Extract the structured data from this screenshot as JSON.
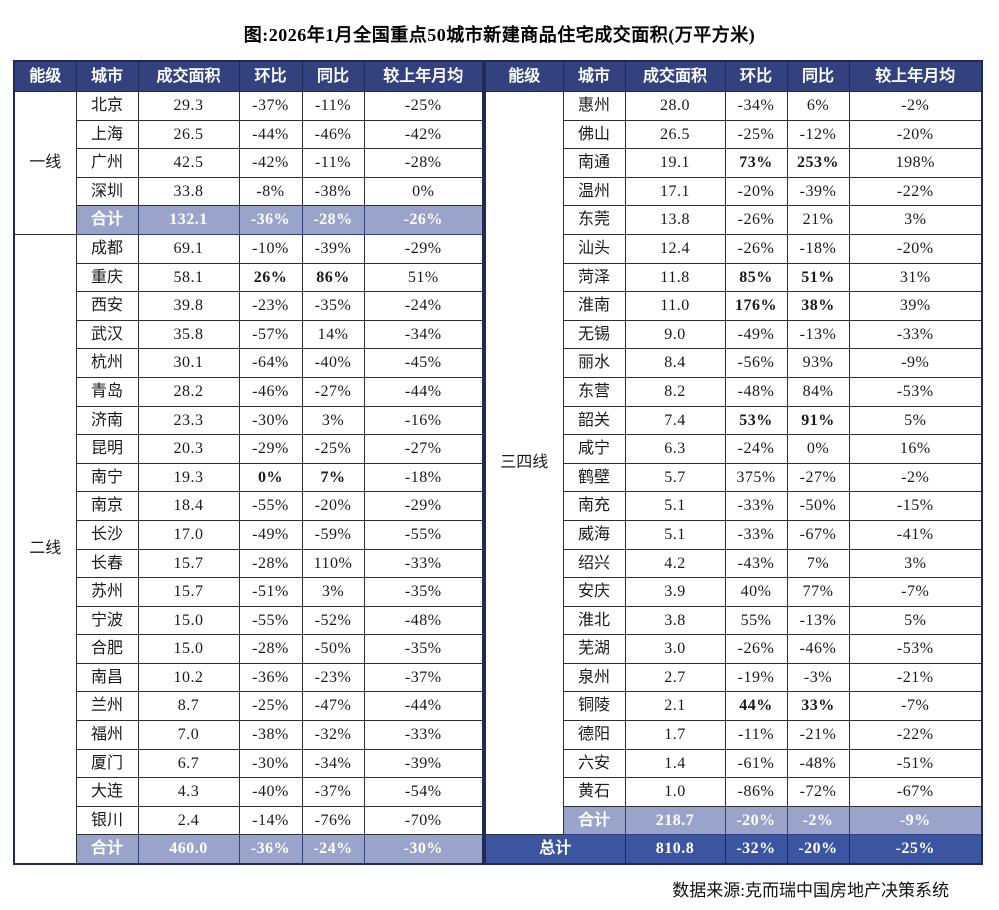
{
  "title": "图:2026年1月全国重点50城市新建商品住宅成交面积(万平方米)",
  "source": "数据来源:克而瑞中国房地产决策系统",
  "colors": {
    "header_bg": "#33417e",
    "subtotal_bg": "#9aa3c9",
    "grand_total_bg": "#3b55a0",
    "border_dark": "#1f2a55",
    "header_text": "#ffffff"
  },
  "chart_data": {
    "type": "table",
    "title": "图:2026年1月全国重点50城市新建商品住宅成交面积(万平方米)",
    "columns": [
      "能级",
      "城市",
      "成交面积",
      "环比",
      "同比",
      "较上年月均"
    ],
    "left_table": {
      "groups": [
        {
          "tier": "一线",
          "rows": [
            {
              "city": "北京",
              "area": "29.3",
              "mom": "-37%",
              "yoy": "-11%",
              "vs_avg": "-25%",
              "bold": false
            },
            {
              "city": "上海",
              "area": "26.5",
              "mom": "-44%",
              "yoy": "-46%",
              "vs_avg": "-42%",
              "bold": false
            },
            {
              "city": "广州",
              "area": "42.5",
              "mom": "-42%",
              "yoy": "-11%",
              "vs_avg": "-28%",
              "bold": false
            },
            {
              "city": "深圳",
              "area": "33.8",
              "mom": "-8%",
              "yoy": "-38%",
              "vs_avg": "0%",
              "bold": false
            }
          ],
          "subtotal": {
            "label": "合计",
            "area": "132.1",
            "mom": "-36%",
            "yoy": "-28%",
            "vs_avg": "-26%"
          }
        },
        {
          "tier": "二线",
          "rows": [
            {
              "city": "成都",
              "area": "69.1",
              "mom": "-10%",
              "yoy": "-39%",
              "vs_avg": "-29%",
              "bold": false
            },
            {
              "city": "重庆",
              "area": "58.1",
              "mom": "26%",
              "yoy": "86%",
              "vs_avg": "51%",
              "bold": true
            },
            {
              "city": "西安",
              "area": "39.8",
              "mom": "-23%",
              "yoy": "-35%",
              "vs_avg": "-24%",
              "bold": false
            },
            {
              "city": "武汉",
              "area": "35.8",
              "mom": "-57%",
              "yoy": "14%",
              "vs_avg": "-34%",
              "bold": false
            },
            {
              "city": "杭州",
              "area": "30.1",
              "mom": "-64%",
              "yoy": "-40%",
              "vs_avg": "-45%",
              "bold": false
            },
            {
              "city": "青岛",
              "area": "28.2",
              "mom": "-46%",
              "yoy": "-27%",
              "vs_avg": "-44%",
              "bold": false
            },
            {
              "city": "济南",
              "area": "23.3",
              "mom": "-30%",
              "yoy": "3%",
              "vs_avg": "-16%",
              "bold": false
            },
            {
              "city": "昆明",
              "area": "20.3",
              "mom": "-29%",
              "yoy": "-25%",
              "vs_avg": "-27%",
              "bold": false
            },
            {
              "city": "南宁",
              "area": "19.3",
              "mom": "0%",
              "yoy": "7%",
              "vs_avg": "-18%",
              "bold": true
            },
            {
              "city": "南京",
              "area": "18.4",
              "mom": "-55%",
              "yoy": "-20%",
              "vs_avg": "-29%",
              "bold": false
            },
            {
              "city": "长沙",
              "area": "17.0",
              "mom": "-49%",
              "yoy": "-59%",
              "vs_avg": "-55%",
              "bold": false
            },
            {
              "city": "长春",
              "area": "15.7",
              "mom": "-28%",
              "yoy": "110%",
              "vs_avg": "-33%",
              "bold": false
            },
            {
              "city": "苏州",
              "area": "15.7",
              "mom": "-51%",
              "yoy": "3%",
              "vs_avg": "-35%",
              "bold": false
            },
            {
              "city": "宁波",
              "area": "15.0",
              "mom": "-55%",
              "yoy": "-52%",
              "vs_avg": "-48%",
              "bold": false
            },
            {
              "city": "合肥",
              "area": "15.0",
              "mom": "-28%",
              "yoy": "-50%",
              "vs_avg": "-35%",
              "bold": false
            },
            {
              "city": "南昌",
              "area": "10.2",
              "mom": "-36%",
              "yoy": "-23%",
              "vs_avg": "-37%",
              "bold": false
            },
            {
              "city": "兰州",
              "area": "8.7",
              "mom": "-25%",
              "yoy": "-47%",
              "vs_avg": "-44%",
              "bold": false
            },
            {
              "city": "福州",
              "area": "7.0",
              "mom": "-38%",
              "yoy": "-32%",
              "vs_avg": "-33%",
              "bold": false
            },
            {
              "city": "厦门",
              "area": "6.7",
              "mom": "-30%",
              "yoy": "-34%",
              "vs_avg": "-39%",
              "bold": false
            },
            {
              "city": "大连",
              "area": "4.3",
              "mom": "-40%",
              "yoy": "-37%",
              "vs_avg": "-54%",
              "bold": false
            },
            {
              "city": "银川",
              "area": "2.4",
              "mom": "-14%",
              "yoy": "-76%",
              "vs_avg": "-70%",
              "bold": false
            }
          ],
          "subtotal": {
            "label": "合计",
            "area": "460.0",
            "mom": "-36%",
            "yoy": "-24%",
            "vs_avg": "-30%"
          }
        }
      ]
    },
    "right_table": {
      "groups": [
        {
          "tier": "三四线",
          "rows": [
            {
              "city": "惠州",
              "area": "28.0",
              "mom": "-34%",
              "yoy": "6%",
              "vs_avg": "-2%",
              "bold": false
            },
            {
              "city": "佛山",
              "area": "26.5",
              "mom": "-25%",
              "yoy": "-12%",
              "vs_avg": "-20%",
              "bold": false
            },
            {
              "city": "南通",
              "area": "19.1",
              "mom": "73%",
              "yoy": "253%",
              "vs_avg": "198%",
              "bold": true
            },
            {
              "city": "温州",
              "area": "17.1",
              "mom": "-20%",
              "yoy": "-39%",
              "vs_avg": "-22%",
              "bold": false
            },
            {
              "city": "东莞",
              "area": "13.8",
              "mom": "-26%",
              "yoy": "21%",
              "vs_avg": "3%",
              "bold": false
            },
            {
              "city": "汕头",
              "area": "12.4",
              "mom": "-26%",
              "yoy": "-18%",
              "vs_avg": "-20%",
              "bold": false
            },
            {
              "city": "菏泽",
              "area": "11.8",
              "mom": "85%",
              "yoy": "51%",
              "vs_avg": "31%",
              "bold": true
            },
            {
              "city": "淮南",
              "area": "11.0",
              "mom": "176%",
              "yoy": "38%",
              "vs_avg": "39%",
              "bold": true
            },
            {
              "city": "无锡",
              "area": "9.0",
              "mom": "-49%",
              "yoy": "-13%",
              "vs_avg": "-33%",
              "bold": false
            },
            {
              "city": "丽水",
              "area": "8.4",
              "mom": "-56%",
              "yoy": "93%",
              "vs_avg": "-9%",
              "bold": false
            },
            {
              "city": "东营",
              "area": "8.2",
              "mom": "-48%",
              "yoy": "84%",
              "vs_avg": "-53%",
              "bold": false
            },
            {
              "city": "韶关",
              "area": "7.4",
              "mom": "53%",
              "yoy": "91%",
              "vs_avg": "5%",
              "bold": true
            },
            {
              "city": "咸宁",
              "area": "6.3",
              "mom": "-24%",
              "yoy": "0%",
              "vs_avg": "16%",
              "bold": false
            },
            {
              "city": "鹤壁",
              "area": "5.7",
              "mom": "375%",
              "yoy": "-27%",
              "vs_avg": "-2%",
              "bold": false
            },
            {
              "city": "南充",
              "area": "5.1",
              "mom": "-33%",
              "yoy": "-50%",
              "vs_avg": "-15%",
              "bold": false
            },
            {
              "city": "威海",
              "area": "5.1",
              "mom": "-33%",
              "yoy": "-67%",
              "vs_avg": "-41%",
              "bold": false
            },
            {
              "city": "绍兴",
              "area": "4.2",
              "mom": "-43%",
              "yoy": "7%",
              "vs_avg": "3%",
              "bold": false
            },
            {
              "city": "安庆",
              "area": "3.9",
              "mom": "40%",
              "yoy": "77%",
              "vs_avg": "-7%",
              "bold": false
            },
            {
              "city": "淮北",
              "area": "3.8",
              "mom": "55%",
              "yoy": "-13%",
              "vs_avg": "5%",
              "bold": false
            },
            {
              "city": "芜湖",
              "area": "3.0",
              "mom": "-26%",
              "yoy": "-46%",
              "vs_avg": "-53%",
              "bold": false
            },
            {
              "city": "泉州",
              "area": "2.7",
              "mom": "-19%",
              "yoy": "-3%",
              "vs_avg": "-21%",
              "bold": false
            },
            {
              "city": "铜陵",
              "area": "2.1",
              "mom": "44%",
              "yoy": "33%",
              "vs_avg": "-7%",
              "bold": true
            },
            {
              "city": "德阳",
              "area": "1.7",
              "mom": "-11%",
              "yoy": "-21%",
              "vs_avg": "-22%",
              "bold": false
            },
            {
              "city": "六安",
              "area": "1.4",
              "mom": "-61%",
              "yoy": "-48%",
              "vs_avg": "-51%",
              "bold": false
            },
            {
              "city": "黄石",
              "area": "1.0",
              "mom": "-86%",
              "yoy": "-72%",
              "vs_avg": "-67%",
              "bold": false
            }
          ],
          "subtotal": {
            "label": "合计",
            "area": "218.7",
            "mom": "-20%",
            "yoy": "-2%",
            "vs_avg": "-9%"
          }
        }
      ],
      "grand_total": {
        "label": "总计",
        "area": "810.8",
        "mom": "-32%",
        "yoy": "-20%",
        "vs_avg": "-25%"
      }
    }
  }
}
